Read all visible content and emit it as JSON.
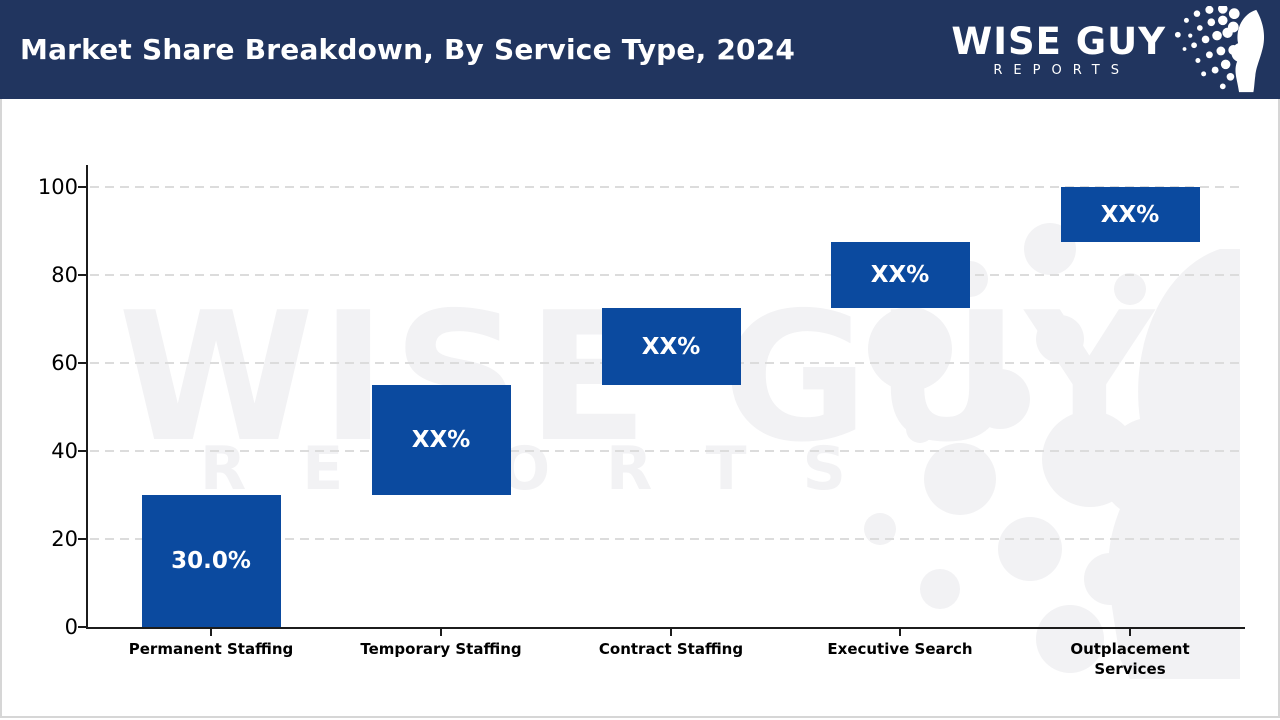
{
  "header": {
    "title": "Market Share Breakdown, By Service Type, 2024",
    "logo": {
      "line1": "WISE GUY",
      "line2": "REPORTS"
    }
  },
  "watermark": {
    "line1": "WISE GUY",
    "line2": "REPORTS"
  },
  "chart_data": {
    "type": "bar",
    "subtype": "waterfall",
    "title": "Market Share Breakdown, By Service Type, 2024",
    "categories": [
      "Permanent Staffing",
      "Temporary Staffing",
      "Contract Staffing",
      "Executive Search",
      "Outplacement Services"
    ],
    "segments": [
      {
        "category": "Permanent Staffing",
        "start": 0,
        "end": 30,
        "label": "30.0%"
      },
      {
        "category": "Temporary Staffing",
        "start": 30,
        "end": 55,
        "label": "XX%"
      },
      {
        "category": "Contract Staffing",
        "start": 55,
        "end": 72.5,
        "label": "XX%"
      },
      {
        "category": "Executive Search",
        "start": 72.5,
        "end": 87.5,
        "label": "XX%"
      },
      {
        "category": "Outplacement Services",
        "start": 87.5,
        "end": 100,
        "label": "XX%"
      }
    ],
    "yticks": [
      0,
      20,
      40,
      60,
      80,
      100
    ],
    "ylim": [
      0,
      105
    ],
    "xlabel": "",
    "ylabel": "",
    "grid": "horizontal-dashed",
    "legend": "none",
    "bar_color": "#0b4a9f",
    "bar_label_color": "#ffffff",
    "axis_color": "#1c1c1c",
    "grid_color": "#dcdcdc"
  },
  "colors": {
    "header_bg": "#21355f",
    "bar": "#0b4a9f",
    "watermark": "#f2f2f4",
    "frame_border": "#d6d6d6"
  }
}
